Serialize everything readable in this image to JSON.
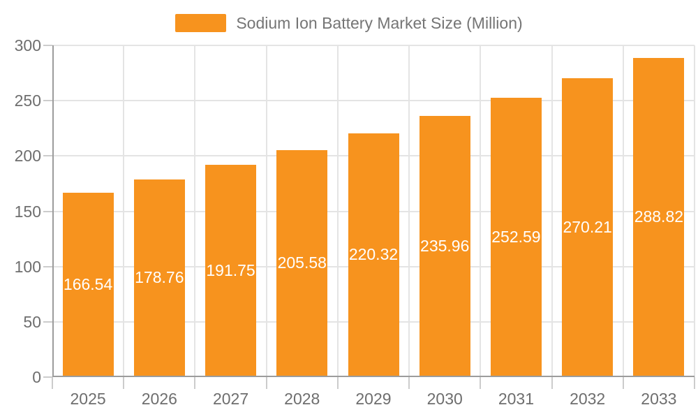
{
  "legend": {
    "label": "Sodium Ion Battery Market Size (Million)"
  },
  "colors": {
    "bar": "#f7931e",
    "axis": "#9c9c9c",
    "grid": "#e4e4e4",
    "tick": "#cccccc",
    "text": "#6e6e6e",
    "legend_text": "#757575",
    "value_label": "#ffffff"
  },
  "chart_data": {
    "type": "bar",
    "title": "Sodium Ion Battery Market Size (Million)",
    "categories": [
      "2025",
      "2026",
      "2027",
      "2028",
      "2029",
      "2030",
      "2031",
      "2032",
      "2033"
    ],
    "values": [
      166.54,
      178.76,
      191.75,
      205.58,
      220.32,
      235.96,
      252.59,
      270.21,
      288.82
    ],
    "value_labels": [
      "166.54",
      "178.76",
      "191.75",
      "205.58",
      "220.32",
      "235.96",
      "252.59",
      "270.21",
      "288.82"
    ],
    "xlabel": "",
    "ylabel": "",
    "ylim": [
      0,
      300
    ],
    "ytick_step": 50,
    "ytick_labels": [
      "0",
      "50",
      "100",
      "150",
      "200",
      "250",
      "300"
    ],
    "grid": true,
    "legend_position": "top",
    "value_label_position": "inside-center"
  }
}
